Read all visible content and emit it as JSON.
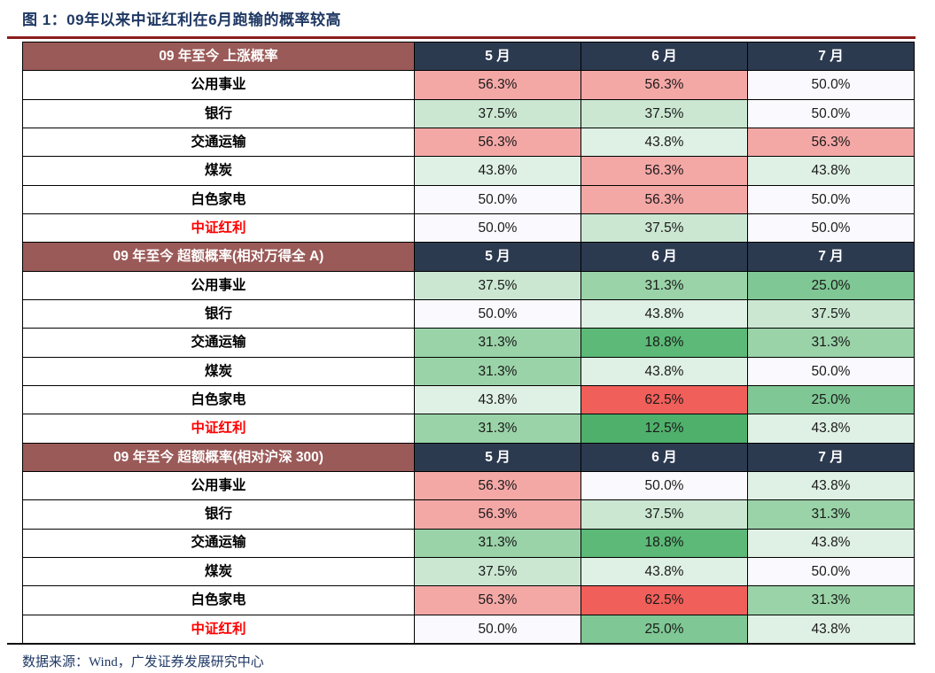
{
  "figure_title": "图 1：09年以来中证红利在6月跑输的概率较高",
  "source_note": "数据来源：Wind，广发证券发展研究中心",
  "accent_colors": {
    "title_navy": "#1F3864",
    "section_header_maroon": "#9A5A58",
    "month_header_navy": "#2C3A50",
    "highlight_row_red": "#FF0000",
    "top_rule_dark_red": "#8C1C1C",
    "bottom_rule_black": "#101010"
  },
  "chart_data": {
    "type": "table",
    "subtype": "heatmap",
    "columns": [
      "5 月",
      "6 月",
      "7 月"
    ],
    "sections": [
      {
        "header": "09 年至今 上涨概率",
        "rows": [
          {
            "label": "公用事业",
            "highlight": false,
            "values": [
              "56.3%",
              "56.3%",
              "50.0%"
            ]
          },
          {
            "label": "银行",
            "highlight": false,
            "values": [
              "37.5%",
              "37.5%",
              "50.0%"
            ]
          },
          {
            "label": "交通运输",
            "highlight": false,
            "values": [
              "56.3%",
              "43.8%",
              "56.3%"
            ]
          },
          {
            "label": "煤炭",
            "highlight": false,
            "values": [
              "43.8%",
              "56.3%",
              "43.8%"
            ]
          },
          {
            "label": "白色家电",
            "highlight": false,
            "values": [
              "50.0%",
              "56.3%",
              "50.0%"
            ]
          },
          {
            "label": "中证红利",
            "highlight": true,
            "values": [
              "50.0%",
              "37.5%",
              "50.0%"
            ]
          }
        ]
      },
      {
        "header": "09 年至今 超额概率(相对万得全 A)",
        "rows": [
          {
            "label": "公用事业",
            "highlight": false,
            "values": [
              "37.5%",
              "31.3%",
              "25.0%"
            ]
          },
          {
            "label": "银行",
            "highlight": false,
            "values": [
              "50.0%",
              "43.8%",
              "37.5%"
            ]
          },
          {
            "label": "交通运输",
            "highlight": false,
            "values": [
              "31.3%",
              "18.8%",
              "31.3%"
            ]
          },
          {
            "label": "煤炭",
            "highlight": false,
            "values": [
              "31.3%",
              "43.8%",
              "50.0%"
            ]
          },
          {
            "label": "白色家电",
            "highlight": false,
            "values": [
              "43.8%",
              "62.5%",
              "25.0%"
            ]
          },
          {
            "label": "中证红利",
            "highlight": true,
            "values": [
              "31.3%",
              "12.5%",
              "43.8%"
            ]
          }
        ]
      },
      {
        "header": "09 年至今 超额概率(相对沪深 300)",
        "rows": [
          {
            "label": "公用事业",
            "highlight": false,
            "values": [
              "56.3%",
              "50.0%",
              "43.8%"
            ]
          },
          {
            "label": "银行",
            "highlight": false,
            "values": [
              "56.3%",
              "37.5%",
              "31.3%"
            ]
          },
          {
            "label": "交通运输",
            "highlight": false,
            "values": [
              "31.3%",
              "18.8%",
              "43.8%"
            ]
          },
          {
            "label": "煤炭",
            "highlight": false,
            "values": [
              "37.5%",
              "43.8%",
              "50.0%"
            ]
          },
          {
            "label": "白色家电",
            "highlight": false,
            "values": [
              "56.3%",
              "62.5%",
              "31.3%"
            ]
          },
          {
            "label": "中证红利",
            "highlight": true,
            "values": [
              "50.0%",
              "25.0%",
              "43.8%"
            ]
          }
        ]
      }
    ],
    "value_color_scale": {
      "62.5%": "#F05F5A",
      "56.3%": "#F4A8A6",
      "50.0%": "#FAFAFE",
      "43.8%": "#DFF0E4",
      "37.5%": "#CBE7D2",
      "31.3%": "#9AD3A8",
      "25.0%": "#7FC794",
      "18.8%": "#5CB977",
      "12.5%": "#4FB06C"
    }
  }
}
